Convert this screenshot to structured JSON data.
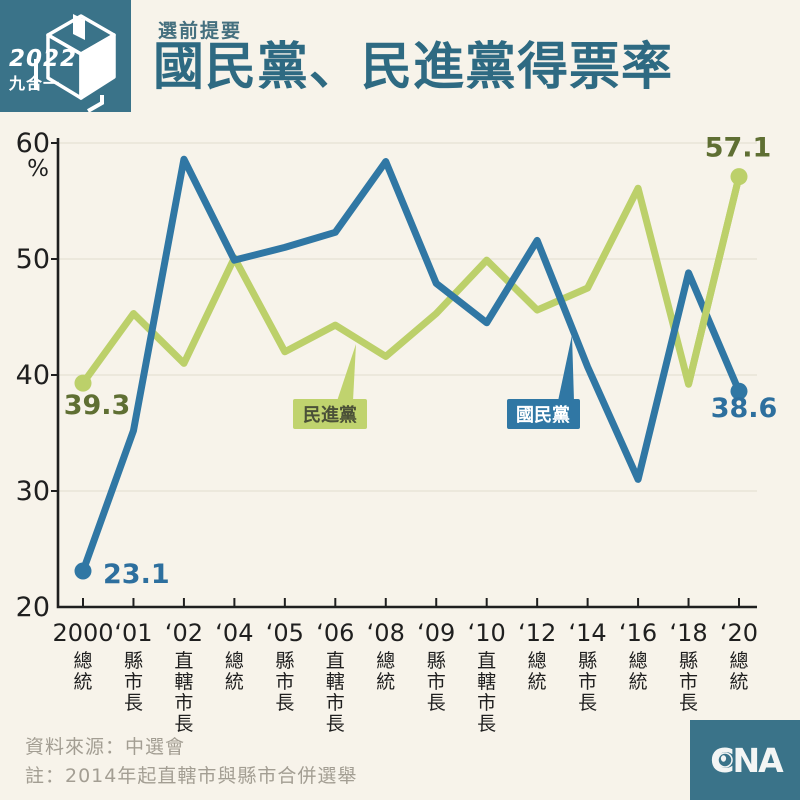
{
  "header": {
    "badge": {
      "year": "2022",
      "label": "九合一"
    },
    "kicker": "選前提要",
    "title": "國民黨、民進黨得票率"
  },
  "chart_data": {
    "type": "line",
    "title": "國民黨、民進黨得票率",
    "unit": "%",
    "ylim": [
      20,
      60
    ],
    "yticks": [
      20,
      30,
      40,
      50,
      60
    ],
    "grid": "horizontal",
    "legend_position": "inline-callouts",
    "colors": {
      "axis": "#1f1f1f",
      "grid": "#e8e4d8"
    },
    "categories": [
      {
        "year": "2000",
        "type": "總統"
      },
      {
        "year": "‘01",
        "type": "縣市長"
      },
      {
        "year": "‘02",
        "type": "直轄市長"
      },
      {
        "year": "‘04",
        "type": "總統"
      },
      {
        "year": "‘05",
        "type": "縣市長"
      },
      {
        "year": "‘06",
        "type": "直轄市長"
      },
      {
        "year": "‘08",
        "type": "總統"
      },
      {
        "year": "‘09",
        "type": "縣市長"
      },
      {
        "year": "‘10",
        "type": "直轄市長"
      },
      {
        "year": "‘12",
        "type": "總統"
      },
      {
        "year": "‘14",
        "type": "縣市長"
      },
      {
        "year": "‘16",
        "type": "總統"
      },
      {
        "year": "‘18",
        "type": "縣市長"
      },
      {
        "year": "‘20",
        "type": "總統"
      }
    ],
    "series": [
      {
        "id": "dpp",
        "name": "民進黨",
        "color": "#bcd06a",
        "label_color": "#5f6f33",
        "callout": {
          "bg": "#c0d36e",
          "text_color": "#4b5138"
        },
        "values": [
          39.3,
          45.3,
          41.0,
          50.1,
          42.0,
          44.3,
          41.6,
          45.3,
          49.9,
          45.6,
          47.5,
          56.1,
          39.2,
          57.1
        ],
        "annotations": [
          {
            "index": 0,
            "label": "39.3"
          },
          {
            "index": 13,
            "label": "57.1"
          }
        ]
      },
      {
        "id": "kmt",
        "name": "國民黨",
        "color": "#3077a4",
        "label_color": "#2d6f9e",
        "callout": {
          "bg": "#3077a4",
          "text_color": "#ffffff"
        },
        "values": [
          23.1,
          35.2,
          58.6,
          49.9,
          51.0,
          52.3,
          58.4,
          47.9,
          44.5,
          51.6,
          40.7,
          31.0,
          48.8,
          38.6
        ],
        "annotations": [
          {
            "index": 0,
            "label": "23.1"
          },
          {
            "index": 13,
            "label": "38.6"
          }
        ]
      }
    ]
  },
  "footer": {
    "source": "資料來源：中選會",
    "note": "註：2014年起直轄市與縣市合併選舉",
    "logo": "CNA"
  }
}
